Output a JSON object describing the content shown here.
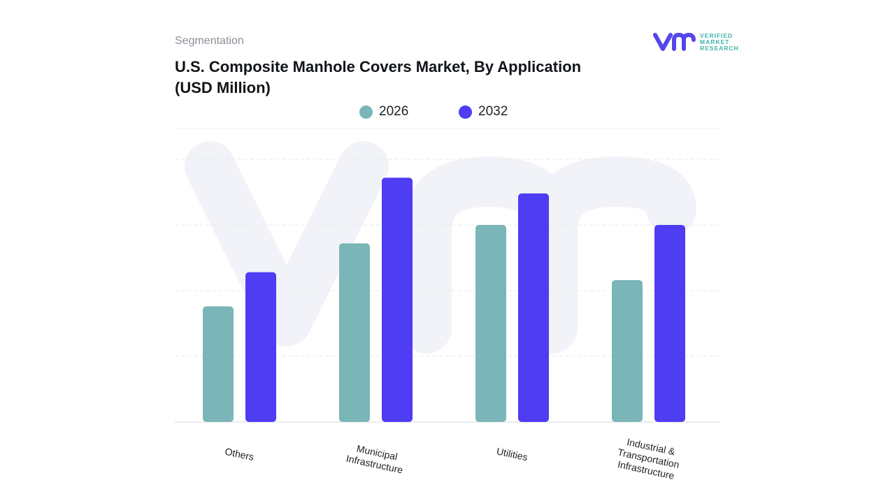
{
  "header": {
    "section": "Segmentation",
    "title": "U.S. Composite Manhole Covers Market, By Application (USD Million)"
  },
  "logo": {
    "name": "vmr-logo-icon",
    "lines": [
      "VERIFIED",
      "MARKET",
      "RESEARCH"
    ]
  },
  "colors": {
    "series_2026": "#7ab5b8",
    "series_2032": "#4e3df2",
    "brand_mark": "#5546e8",
    "brand_text": "#3fb3a8",
    "watermark": "#f2f3f8"
  },
  "chart_data": {
    "type": "bar",
    "title": "U.S. Composite Manhole Covers Market, By Application (USD Million)",
    "categories": [
      [
        "Others"
      ],
      [
        "Municipal",
        "Infrastructure"
      ],
      [
        "Utilities"
      ],
      [
        "Industrial &",
        "Transportation",
        "Infrastructure"
      ]
    ],
    "series": [
      {
        "name": "2026",
        "values": [
          44,
          68,
          75,
          54
        ]
      },
      {
        "name": "2032",
        "values": [
          57,
          93,
          87,
          75
        ]
      }
    ],
    "ylim": [
      0,
      100
    ],
    "xlabel": "",
    "ylabel": "",
    "grid": true,
    "legend_position": "top-center",
    "tick_label_rotation_deg": 12
  }
}
